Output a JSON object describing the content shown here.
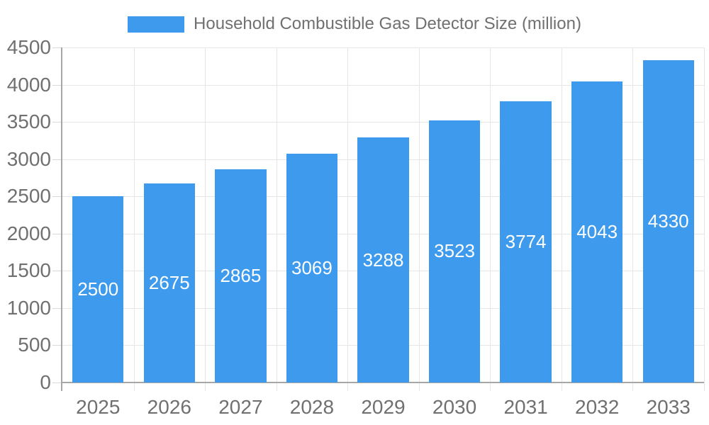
{
  "legend": {
    "label": "Household Combustible Gas Detector Size (million)"
  },
  "chart_data": {
    "type": "bar",
    "title": "Household Combustible Gas Detector Size (million)",
    "series_name": "Household Combustible Gas Detector Size (million)",
    "categories": [
      "2025",
      "2026",
      "2027",
      "2028",
      "2029",
      "2030",
      "2031",
      "2032",
      "2033"
    ],
    "values": [
      2500,
      2675,
      2865,
      3069,
      3288,
      3523,
      3774,
      4043,
      4330
    ],
    "xlabel": "",
    "ylabel": "",
    "ylim": [
      0,
      4500
    ],
    "ytick_step": 500,
    "yticks": [
      0,
      500,
      1000,
      1500,
      2000,
      2500,
      3000,
      3500,
      4000,
      4500
    ],
    "grid": true,
    "legend_position": "top-center",
    "value_label_position": "inside-center",
    "colors": {
      "bar": "#3E9AEC",
      "grid": "#E6E6E6",
      "tick": "#D9D9D9",
      "axis": "#A6A6A6",
      "text": "#707070",
      "bar_label": "#FFFFFF",
      "background": "#FFFFFF"
    }
  }
}
